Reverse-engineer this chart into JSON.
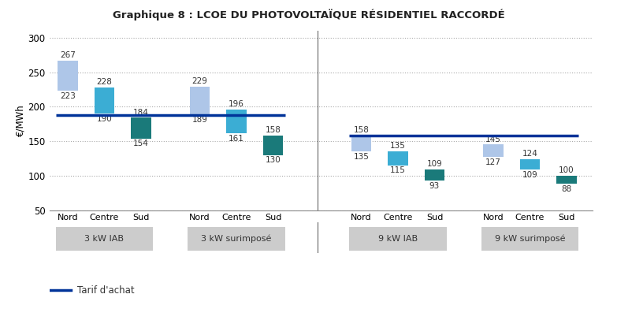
{
  "title": "Graphique 8 : LCOE DU PHOTOVOLTAÏQUE RÉSIDENTIEL RACCORDÉ",
  "ylabel": "€/MWh",
  "ylim": [
    50,
    310
  ],
  "yticks": [
    50,
    100,
    150,
    200,
    250,
    300
  ],
  "groups": [
    {
      "label": "3 kW IAB",
      "locations": [
        "Nord",
        "Centre",
        "Sud"
      ],
      "bars": [
        {
          "low": 223,
          "high": 267,
          "color": "#aec6e8"
        },
        {
          "low": 190,
          "high": 228,
          "color": "#3badd4"
        },
        {
          "low": 154,
          "high": 184,
          "color": "#1a7a7a"
        }
      ],
      "tarif": 188
    },
    {
      "label": "3 kW surimposé",
      "locations": [
        "Nord",
        "Centre",
        "Sud"
      ],
      "bars": [
        {
          "low": 189,
          "high": 229,
          "color": "#aec6e8"
        },
        {
          "low": 161,
          "high": 196,
          "color": "#3badd4"
        },
        {
          "low": 130,
          "high": 158,
          "color": "#1a7a7a"
        }
      ],
      "tarif": 188
    },
    {
      "label": "9 kW IAB",
      "locations": [
        "Nord",
        "Centre",
        "Sud"
      ],
      "bars": [
        {
          "low": 135,
          "high": 158,
          "color": "#aec6e8"
        },
        {
          "low": 115,
          "high": 135,
          "color": "#3badd4"
        },
        {
          "low": 93,
          "high": 109,
          "color": "#1a7a7a"
        }
      ],
      "tarif": 158
    },
    {
      "label": "9 kW surimposé",
      "locations": [
        "Nord",
        "Centre",
        "Sud"
      ],
      "bars": [
        {
          "low": 127,
          "high": 145,
          "color": "#aec6e8"
        },
        {
          "low": 109,
          "high": 124,
          "color": "#3badd4"
        },
        {
          "low": 88,
          "high": 100,
          "color": "#1a7a7a"
        }
      ],
      "tarif": 158
    }
  ],
  "tarif_color": "#003399",
  "tarif_linewidth": 2.5,
  "label_fontsize": 7.5,
  "bar_width": 0.55,
  "background_color": "#ffffff",
  "label_color": "#333333",
  "group_label_bg": "#cccccc",
  "group_label_fontsize": 8
}
